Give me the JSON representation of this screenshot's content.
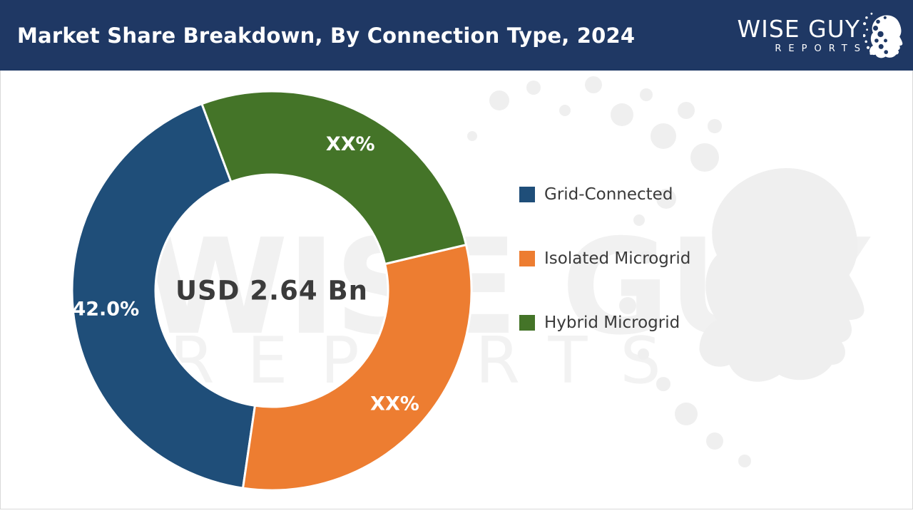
{
  "header": {
    "title": "Market Share Breakdown, By Connection Type, 2024",
    "logo": {
      "line1": "WISE GUY",
      "line2": "REPORTS"
    }
  },
  "watermark": {
    "line1": "WISE GUY",
    "line2": "REPORTS"
  },
  "chart_data": {
    "type": "pie",
    "subtype": "donut",
    "title": "Market Share Breakdown, By Connection Type, 2024",
    "center_label": "USD 2.64 Bn",
    "legend_position": "right",
    "start_angle_deg": 110.5,
    "direction": "counterclockwise",
    "inner_radius_ratio": 0.582,
    "slices": [
      {
        "label": "Grid-Connected",
        "data_label": "42.0%",
        "value_pct": 42.0,
        "color": "#1F4E79"
      },
      {
        "label": "Isolated Microgrid",
        "data_label": "XX%",
        "value_pct": 31.0,
        "color": "#ED7D31"
      },
      {
        "label": "Hybrid Microgrid",
        "data_label": "XX%",
        "value_pct": 27.0,
        "color": "#447428"
      }
    ]
  },
  "colors": {
    "header_bg": "#1F3864",
    "text_dark": "#3B3B3B",
    "canvas_border": "#D9D9D9",
    "watermark_gray": "#F1F1F1",
    "slice_separator": "#FFFFFF"
  }
}
